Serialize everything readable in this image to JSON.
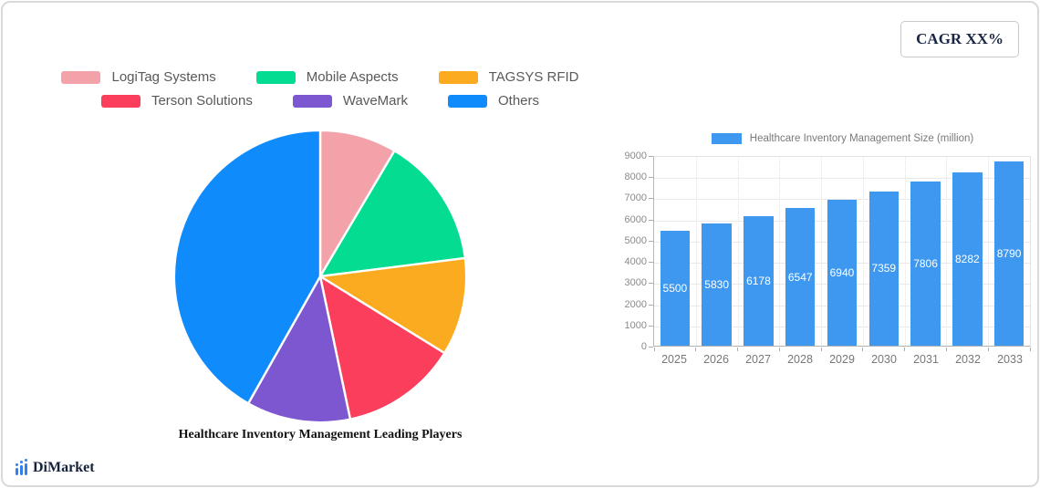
{
  "card": {
    "cagr_label": "CAGR XX%"
  },
  "branding": {
    "name": "DiMarket",
    "icon": "bar-chart-icon",
    "icon_color": "#2f80ed"
  },
  "chart_data": [
    {
      "type": "pie",
      "title": "Healthcare Inventory Management Leading Players",
      "labels": [
        "LogiTag Systems",
        "Mobile Aspects",
        "TAGSYS RFID",
        "Terson Solutions",
        "WaveMark",
        "Others"
      ],
      "values": [
        8.5,
        14.5,
        10.8,
        12.9,
        11.5,
        41.8
      ],
      "colors": [
        "#F2A2A8",
        "#04DC92",
        "#FBAB1F",
        "#FB3E5C",
        "#7C57D0",
        "#0F8BFB"
      ],
      "legend_rows": [
        3,
        3
      ],
      "start_angle": "top",
      "direction": "clockwise",
      "slice_border_color": "#ffffff"
    },
    {
      "type": "bar",
      "legend": "Healthcare Inventory Management Size (million)",
      "categories": [
        "2025",
        "2026",
        "2027",
        "2028",
        "2029",
        "2030",
        "2031",
        "2032",
        "2033"
      ],
      "values": [
        5500,
        5830,
        6178,
        6547,
        6940,
        7359,
        7806,
        8282,
        8790
      ],
      "bar_color": "#3e98f0",
      "value_label_color": "#ffffff",
      "ylim": [
        0,
        9000
      ],
      "ytick_step": 1000,
      "grid": true,
      "legend_position": "top"
    }
  ]
}
